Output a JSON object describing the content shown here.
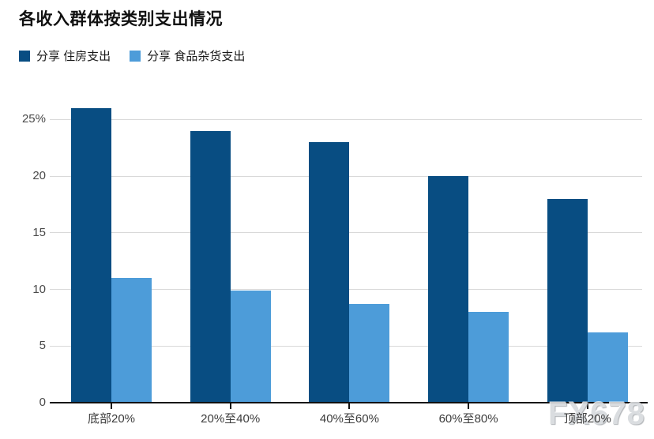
{
  "chart": {
    "title": "各收入群体按类别支出情况"
  },
  "watermark": "FX678",
  "chart_data": {
    "type": "bar",
    "title": "各收入群体按类别支出情况",
    "categories": [
      "底部20%",
      "20%至40%",
      "40%至60%",
      "60%至80%",
      "顶部20%"
    ],
    "series": [
      {
        "name": "分享 住房支出",
        "color": "#084d82",
        "values": [
          26,
          24,
          23,
          20,
          18
        ]
      },
      {
        "name": "分享 食品杂货支出",
        "color": "#4d9cd9",
        "values": [
          11,
          9.9,
          8.7,
          8,
          6.2
        ]
      }
    ],
    "ylim": [
      0,
      26.5
    ],
    "yticks": [
      {
        "value": 0,
        "label": "0"
      },
      {
        "value": 5,
        "label": "5"
      },
      {
        "value": 10,
        "label": "10"
      },
      {
        "value": 15,
        "label": "15"
      },
      {
        "value": 20,
        "label": "20"
      },
      {
        "value": 25,
        "label": "25%"
      }
    ],
    "grid": "horizontal",
    "legend_position": "top-left",
    "unit": "%"
  },
  "colors": {
    "grid": "#d9d9d9",
    "axis": "#111111",
    "ytick_text": "#4a4a4a",
    "xtick_text": "#3c3c3c",
    "watermark": "#d7dadd",
    "background": "#ffffff"
  }
}
